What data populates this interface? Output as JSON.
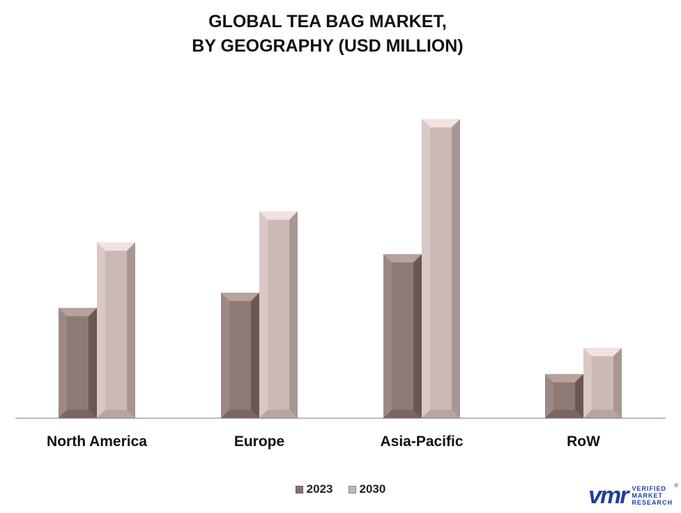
{
  "chart_data": {
    "type": "bar",
    "title_lines": [
      "GLOBAL TEA BAG MARKET,",
      "BY GEOGRAPHY (USD MILLION)"
    ],
    "categories": [
      "North America",
      "Europe",
      "Asia-Pacific",
      "RoW"
    ],
    "series": [
      {
        "name": "2023",
        "values": [
          160,
          182,
          238,
          64
        ],
        "color": "#8a7470"
      },
      {
        "name": "2030",
        "values": [
          255,
          300,
          434,
          102
        ],
        "color": "#c5b4b1"
      }
    ],
    "ylim": [
      0,
      440
    ],
    "grid": false,
    "legend_position": "bottom-center"
  },
  "branding": {
    "logo_icon": "vmr-logo",
    "logo_lines": [
      "VERIFIED",
      "MARKET",
      "RESEARCH"
    ],
    "logo_reg": "®"
  }
}
